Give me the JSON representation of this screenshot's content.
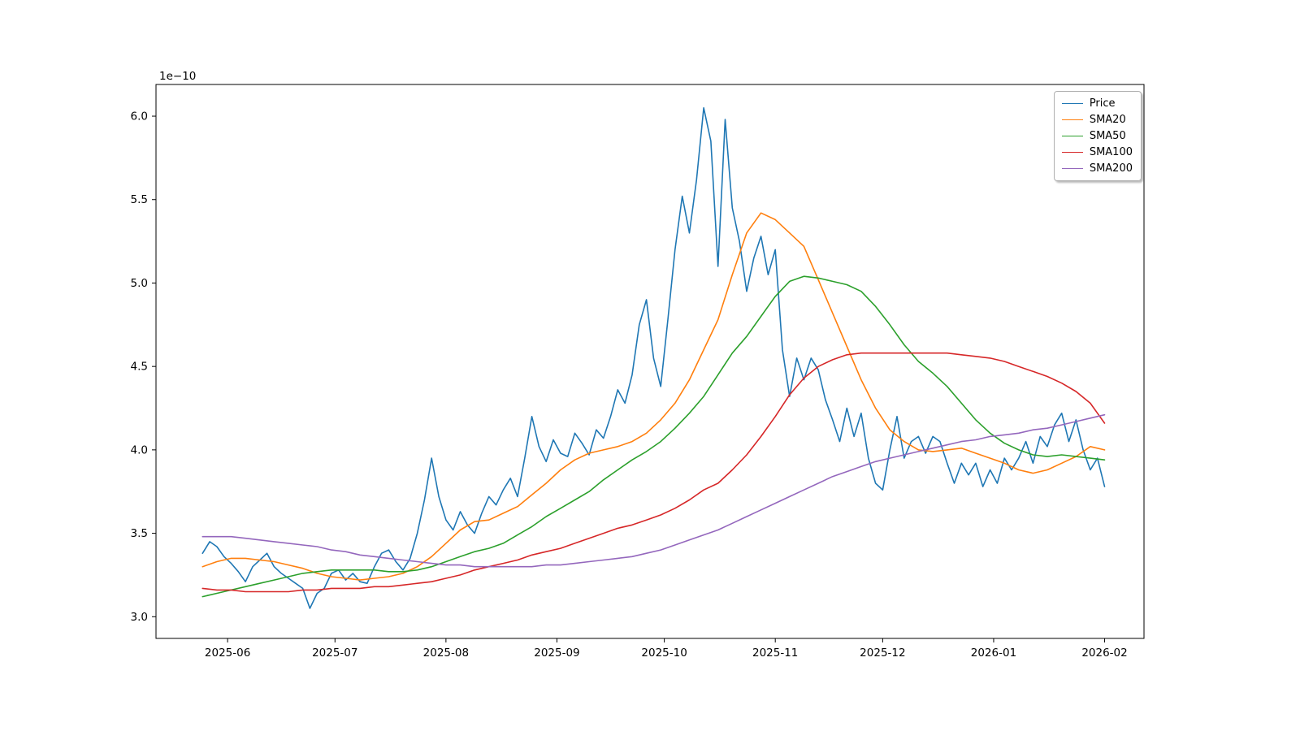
{
  "figure": {
    "background_color": "#ffffff",
    "frame_color": "#000000",
    "tick_color": "#000000"
  },
  "chart_data": {
    "type": "line",
    "title": "",
    "xlabel": "",
    "ylabel": "",
    "y_offset_text": "1e−10",
    "grid": false,
    "legend_position": "upper right",
    "x_unit": "days, day 0 = 2025-05-25",
    "xlim": [
      -13,
      263
    ],
    "ylim": [
      2.87,
      6.19
    ],
    "x_ticks": [
      {
        "day": 7,
        "label": "2025-06"
      },
      {
        "day": 37,
        "label": "2025-07"
      },
      {
        "day": 68,
        "label": "2025-08"
      },
      {
        "day": 99,
        "label": "2025-09"
      },
      {
        "day": 129,
        "label": "2025-10"
      },
      {
        "day": 160,
        "label": "2025-11"
      },
      {
        "day": 190,
        "label": "2025-12"
      },
      {
        "day": 221,
        "label": "2026-01"
      },
      {
        "day": 252,
        "label": "2026-02"
      }
    ],
    "y_ticks": [
      {
        "value": 3.0,
        "label": "3.0"
      },
      {
        "value": 3.5,
        "label": "3.5"
      },
      {
        "value": 4.0,
        "label": "4.0"
      },
      {
        "value": 4.5,
        "label": "4.5"
      },
      {
        "value": 5.0,
        "label": "5.0"
      },
      {
        "value": 5.5,
        "label": "5.5"
      },
      {
        "value": 6.0,
        "label": "6.0"
      }
    ],
    "series": [
      {
        "name": "Price",
        "color": "#1f77b4",
        "start_day": 0,
        "step": 2,
        "values": [
          3.38,
          3.45,
          3.42,
          3.36,
          3.32,
          3.27,
          3.21,
          3.3,
          3.34,
          3.38,
          3.3,
          3.26,
          3.23,
          3.2,
          3.17,
          3.05,
          3.14,
          3.17,
          3.26,
          3.28,
          3.22,
          3.26,
          3.21,
          3.2,
          3.3,
          3.38,
          3.4,
          3.33,
          3.28,
          3.35,
          3.5,
          3.7,
          3.95,
          3.72,
          3.58,
          3.52,
          3.63,
          3.55,
          3.5,
          3.62,
          3.72,
          3.67,
          3.76,
          3.83,
          3.72,
          3.95,
          4.2,
          4.02,
          3.93,
          4.06,
          3.98,
          3.96,
          4.1,
          4.04,
          3.97,
          4.12,
          4.07,
          4.2,
          4.36,
          4.28,
          4.45,
          4.75,
          4.9,
          4.55,
          4.38,
          4.78,
          5.2,
          5.52,
          5.3,
          5.62,
          6.05,
          5.85,
          5.1,
          5.98,
          5.45,
          5.25,
          4.95,
          5.15,
          5.28,
          5.05,
          5.2,
          4.6,
          4.32,
          4.55,
          4.42,
          4.55,
          4.48,
          4.3,
          4.18,
          4.05,
          4.25,
          4.08,
          4.22,
          3.95,
          3.8,
          3.76,
          4.0,
          4.2,
          3.95,
          4.05,
          4.08,
          3.98,
          4.08,
          4.05,
          3.92,
          3.8,
          3.92,
          3.85,
          3.92,
          3.78,
          3.88,
          3.8,
          3.95,
          3.88,
          3.95,
          4.05,
          3.92,
          4.08,
          4.02,
          4.15,
          4.22,
          4.05,
          4.18,
          4.0,
          3.88,
          3.95,
          3.78
        ]
      },
      {
        "name": "SMA20",
        "color": "#ff7f0e",
        "start_day": 0,
        "step": 4,
        "values": [
          3.3,
          3.33,
          3.35,
          3.35,
          3.34,
          3.33,
          3.31,
          3.29,
          3.26,
          3.24,
          3.23,
          3.22,
          3.23,
          3.24,
          3.26,
          3.3,
          3.36,
          3.44,
          3.52,
          3.57,
          3.58,
          3.62,
          3.66,
          3.73,
          3.8,
          3.88,
          3.94,
          3.98,
          4.0,
          4.02,
          4.05,
          4.1,
          4.18,
          4.28,
          4.42,
          4.6,
          4.78,
          5.05,
          5.3,
          5.42,
          5.38,
          5.3,
          5.22,
          5.02,
          4.82,
          4.62,
          4.42,
          4.25,
          4.12,
          4.05,
          4.0,
          3.99,
          4.0,
          4.01,
          3.98,
          3.95,
          3.92,
          3.88,
          3.86,
          3.88,
          3.92,
          3.96,
          4.02,
          4.0
        ]
      },
      {
        "name": "SMA50",
        "color": "#2ca02c",
        "start_day": 0,
        "step": 4,
        "values": [
          3.12,
          3.14,
          3.16,
          3.18,
          3.2,
          3.22,
          3.24,
          3.26,
          3.27,
          3.28,
          3.28,
          3.28,
          3.28,
          3.27,
          3.27,
          3.28,
          3.3,
          3.33,
          3.36,
          3.39,
          3.41,
          3.44,
          3.49,
          3.54,
          3.6,
          3.65,
          3.7,
          3.75,
          3.82,
          3.88,
          3.94,
          3.99,
          4.05,
          4.13,
          4.22,
          4.32,
          4.45,
          4.58,
          4.68,
          4.8,
          4.92,
          5.01,
          5.04,
          5.03,
          5.01,
          4.99,
          4.95,
          4.86,
          4.75,
          4.63,
          4.53,
          4.46,
          4.38,
          4.28,
          4.18,
          4.1,
          4.04,
          4.0,
          3.97,
          3.96,
          3.97,
          3.96,
          3.95,
          3.94
        ]
      },
      {
        "name": "SMA100",
        "color": "#d62728",
        "start_day": 0,
        "step": 4,
        "values": [
          3.17,
          3.16,
          3.16,
          3.15,
          3.15,
          3.15,
          3.15,
          3.16,
          3.16,
          3.17,
          3.17,
          3.17,
          3.18,
          3.18,
          3.19,
          3.2,
          3.21,
          3.23,
          3.25,
          3.28,
          3.3,
          3.32,
          3.34,
          3.37,
          3.39,
          3.41,
          3.44,
          3.47,
          3.5,
          3.53,
          3.55,
          3.58,
          3.61,
          3.65,
          3.7,
          3.76,
          3.8,
          3.88,
          3.97,
          4.08,
          4.2,
          4.33,
          4.43,
          4.5,
          4.54,
          4.57,
          4.58,
          4.58,
          4.58,
          4.58,
          4.58,
          4.58,
          4.58,
          4.57,
          4.56,
          4.55,
          4.53,
          4.5,
          4.47,
          4.44,
          4.4,
          4.35,
          4.28,
          4.16
        ]
      },
      {
        "name": "SMA200",
        "color": "#9467bd",
        "start_day": 0,
        "step": 4,
        "values": [
          3.48,
          3.48,
          3.48,
          3.47,
          3.46,
          3.45,
          3.44,
          3.43,
          3.42,
          3.4,
          3.39,
          3.37,
          3.36,
          3.35,
          3.34,
          3.33,
          3.32,
          3.31,
          3.31,
          3.3,
          3.3,
          3.3,
          3.3,
          3.3,
          3.31,
          3.31,
          3.32,
          3.33,
          3.34,
          3.35,
          3.36,
          3.38,
          3.4,
          3.43,
          3.46,
          3.49,
          3.52,
          3.56,
          3.6,
          3.64,
          3.68,
          3.72,
          3.76,
          3.8,
          3.84,
          3.87,
          3.9,
          3.93,
          3.95,
          3.97,
          3.99,
          4.01,
          4.03,
          4.05,
          4.06,
          4.08,
          4.09,
          4.1,
          4.12,
          4.13,
          4.15,
          4.17,
          4.19,
          4.21
        ]
      }
    ],
    "legend_entries": [
      "Price",
      "SMA20",
      "SMA50",
      "SMA100",
      "SMA200"
    ]
  }
}
